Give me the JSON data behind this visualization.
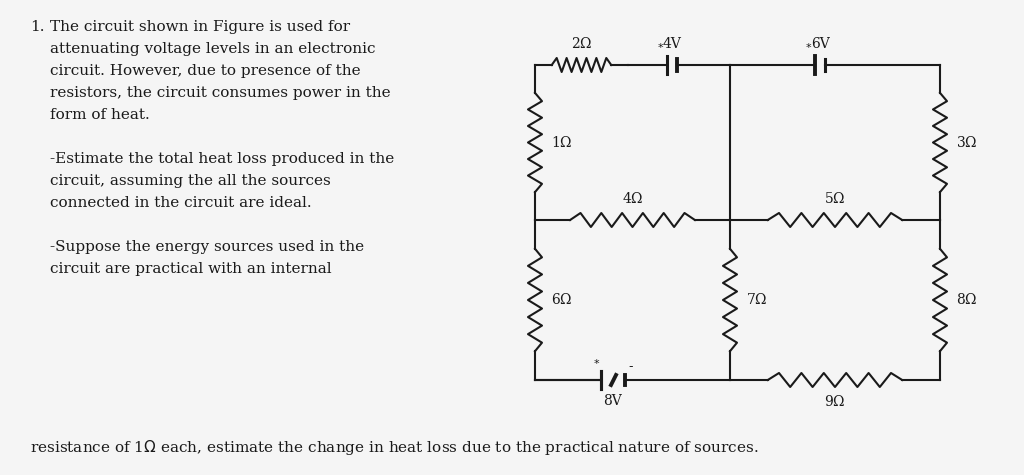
{
  "bg_color": "#f5f5f5",
  "text_color": "#1a1a1a",
  "line_color": "#1a1a1a",
  "font_size_body": 11,
  "font_size_label": 11,
  "title_number": "1.",
  "paragraph1": "The circuit shown in Figure is used for\nattenuating voltage levels in an electronic\ncircuit. However, due to presence of the\nresistors, the circuit consumes power in the\nform of heat.",
  "paragraph2": "-Estimate the total heat loss produced in the\ncircuit, assuming the all the sources\nconnected in the circuit are ideal.",
  "paragraph3": "-Suppose the energy sources used in the\ncircuit are practical with an internal\nresistance of 1Ω each, estimate the change in heat loss due to the practical nature of sources."
}
